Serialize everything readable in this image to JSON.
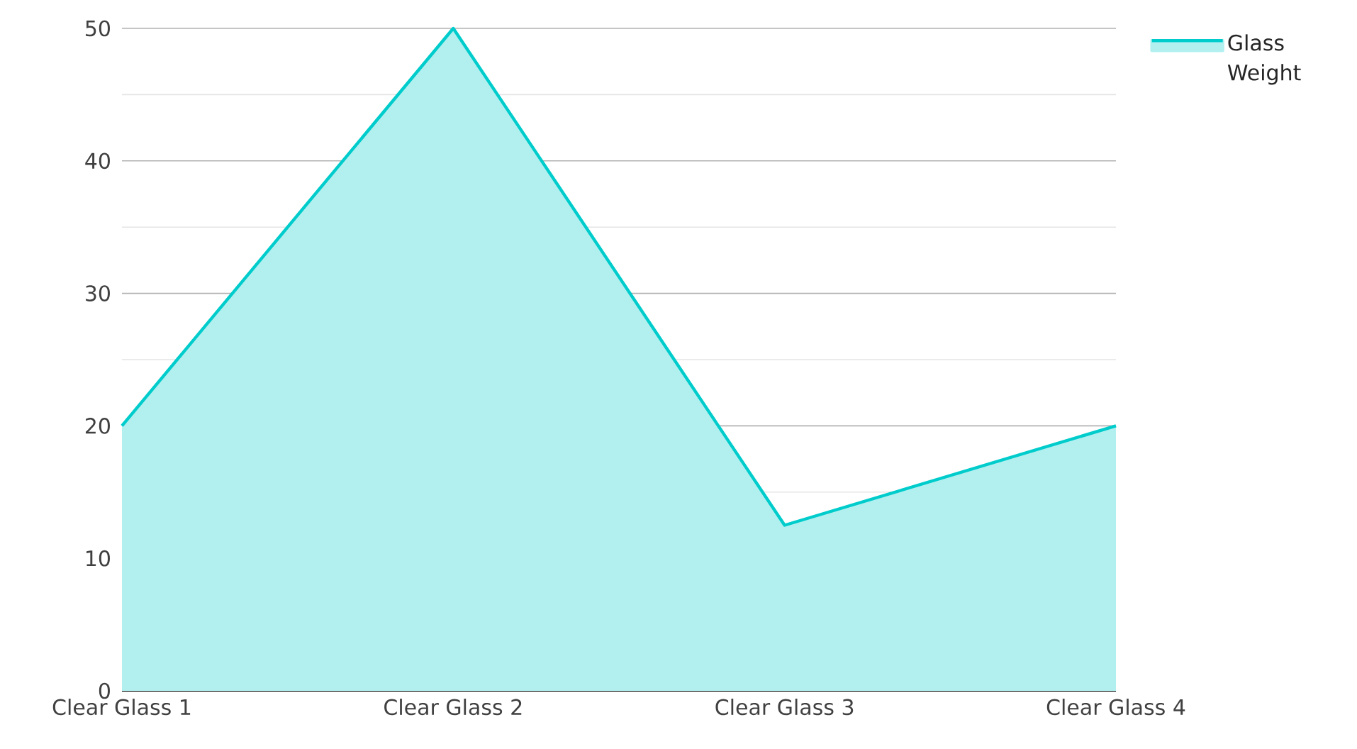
{
  "chart_data": {
    "type": "area",
    "categories": [
      "Clear Glass 1",
      "Clear Glass 2",
      "Clear Glass 3",
      "Clear Glass 4"
    ],
    "series": [
      {
        "name": "Glass Weight",
        "color": "#00cccc",
        "values": [
          20,
          50,
          12.5,
          20
        ]
      }
    ],
    "ylim": [
      0,
      50
    ],
    "yticks": [
      0,
      {
        "value": 5,
        "label": null
      },
      10,
      {
        "value": 15,
        "label": null
      },
      20,
      {
        "value": 25,
        "label": null
      },
      30,
      {
        "value": 35,
        "label": null
      },
      40,
      {
        "value": 45,
        "label": null
      },
      50
    ],
    "grid": "y",
    "legend": "top right"
  }
}
